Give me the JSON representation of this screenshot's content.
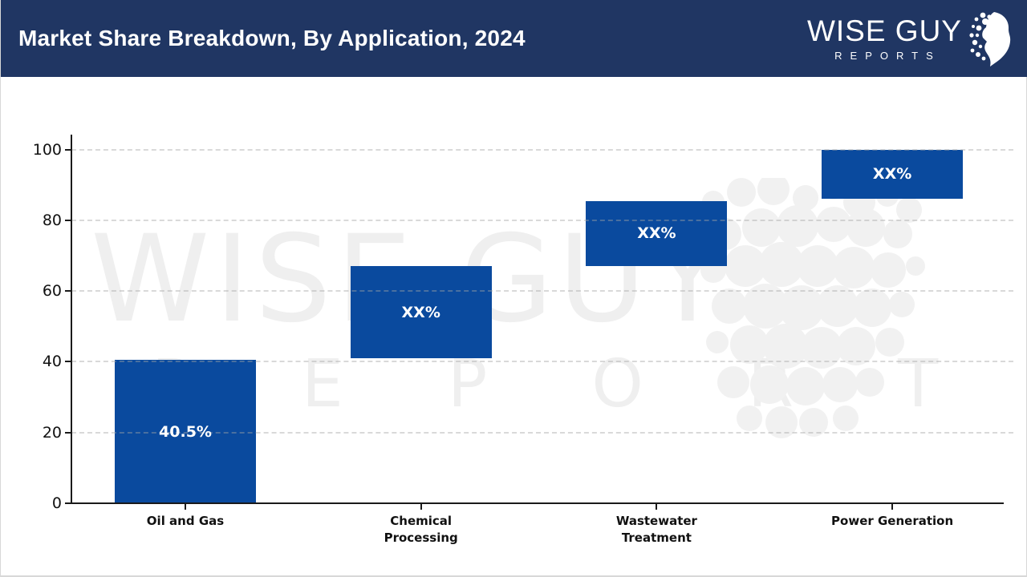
{
  "header": {
    "title": "Market Share Breakdown, By Application, 2024",
    "logo": {
      "name": "WISE GUY",
      "subtitle": "REPORTS"
    }
  },
  "watermark": {
    "line1": "WISE GUY",
    "line2": "R E P O R T S"
  },
  "chart_data": {
    "type": "bar",
    "subtype": "waterfall",
    "title": "Market Share Breakdown, By Application, 2024",
    "categories": [
      "Oil and Gas",
      "Chemical Processing",
      "Wastewater Treatment",
      "Power Generation"
    ],
    "bars": [
      {
        "category": "Oil and Gas",
        "lines": [
          "Oil and Gas"
        ],
        "start": 0,
        "end": 40.5,
        "label": "40.5%"
      },
      {
        "category": "Chemical Processing",
        "lines": [
          "Chemical",
          "Processing"
        ],
        "start": 41,
        "end": 67,
        "label": "XX%"
      },
      {
        "category": "Wastewater Treatment",
        "lines": [
          "Wastewater",
          "Treatment"
        ],
        "start": 67,
        "end": 85.5,
        "label": "XX%"
      },
      {
        "category": "Power Generation",
        "lines": [
          "Power Generation"
        ],
        "start": 86,
        "end": 100,
        "label": "XX%"
      }
    ],
    "ylim": [
      0,
      100
    ],
    "yticks": [
      0,
      20,
      40,
      60,
      80,
      100
    ],
    "xlabel": "",
    "ylabel": "",
    "grid": "horizontal-dashed",
    "legend": "none",
    "bar_color": "#0a4a9e",
    "value_label_color": "#ffffff"
  },
  "colors": {
    "header_bg": "#203663",
    "bar": "#0a4a9e",
    "axis": "#1a1a1a",
    "grid": "#dcdcdc",
    "watermark": "#efefef",
    "border": "#d8d8d8"
  }
}
